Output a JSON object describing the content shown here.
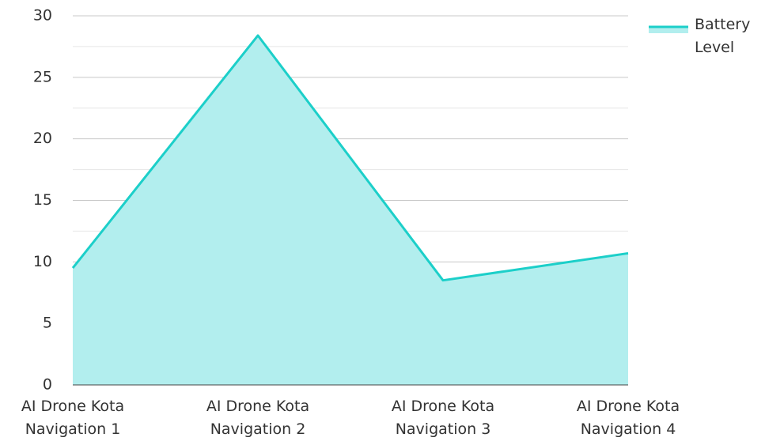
{
  "chart_data": {
    "type": "area",
    "categories": [
      "AI Drone Kota Navigation 1",
      "AI Drone Kota Navigation 2",
      "AI Drone Kota Navigation 3",
      "AI Drone Kota Navigation 4"
    ],
    "series": [
      {
        "name": "Battery Level",
        "color": "#1ccfc9",
        "fill": "#b2eeee",
        "values": [
          9.5,
          28.4,
          8.5,
          10.7
        ]
      }
    ],
    "ylim": [
      0,
      30
    ],
    "yticks": [
      0,
      5,
      10,
      15,
      20,
      25,
      30
    ],
    "grid": true,
    "minor_grid": true,
    "legend": "top-right"
  }
}
